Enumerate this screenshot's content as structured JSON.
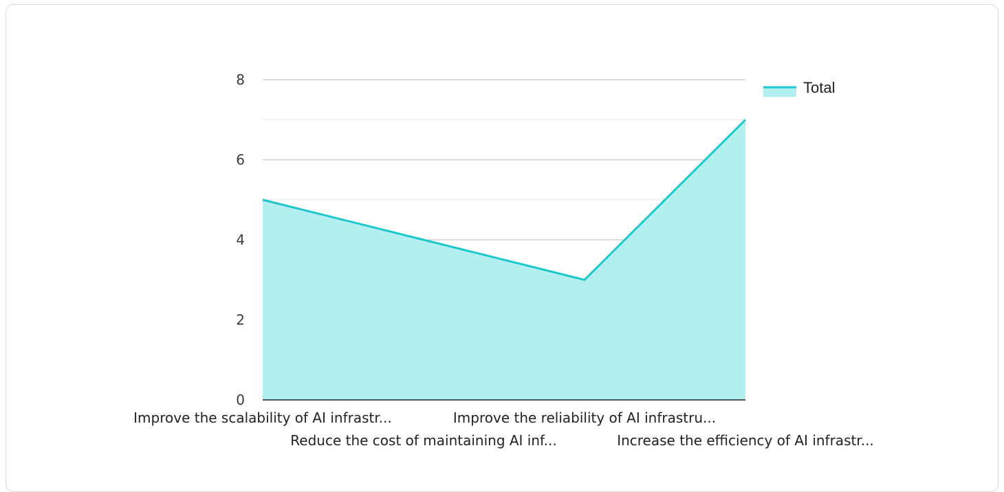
{
  "chart_data": {
    "type": "area",
    "categories": [
      "Improve the scalability of AI infrastr...",
      "Reduce the cost of maintaining AI inf...",
      "Improve the reliability of AI infrastru...",
      "Increase the efficiency of AI infrastr..."
    ],
    "series": [
      {
        "name": "Total",
        "values": [
          5,
          4,
          3,
          7
        ]
      }
    ],
    "ylim": [
      0,
      8
    ],
    "yticks": [
      0,
      2,
      4,
      6,
      8
    ],
    "grid": true,
    "legend": "top-right",
    "colors": {
      "line": "#1dc8cd",
      "fill": "#b2efef",
      "grid_major": "#c8c8c8",
      "grid_minor": "#ececec"
    }
  }
}
